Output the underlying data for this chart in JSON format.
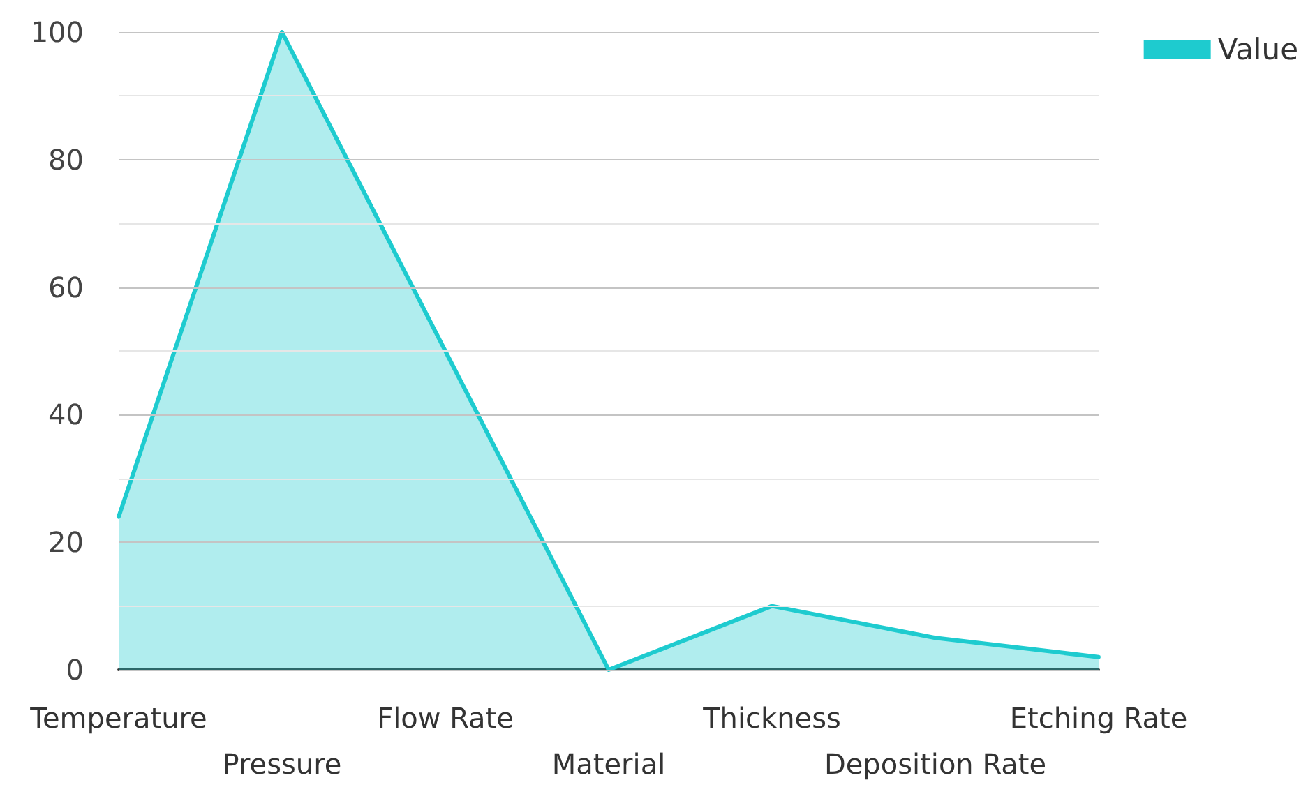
{
  "chart_data": {
    "type": "area",
    "categories": [
      "Temperature",
      "Pressure",
      "Flow Rate",
      "Material",
      "Thickness",
      "Deposition Rate",
      "Etching Rate"
    ],
    "series": [
      {
        "name": "Value",
        "color": "#1ecbcf",
        "values": [
          24,
          100,
          50,
          0,
          10,
          5,
          2
        ]
      }
    ],
    "ylim": [
      0,
      100
    ],
    "yticks": [
      0,
      {
        "value": 10,
        "label": null
      },
      20,
      {
        "value": 30,
        "label": null
      },
      40,
      {
        "value": 50,
        "label": null
      },
      60,
      {
        "value": 70,
        "label": null
      },
      80,
      {
        "value": 90,
        "label": null
      },
      100
    ],
    "grid": "y",
    "legend": "top right",
    "marker": "none",
    "line_style": "solid"
  }
}
